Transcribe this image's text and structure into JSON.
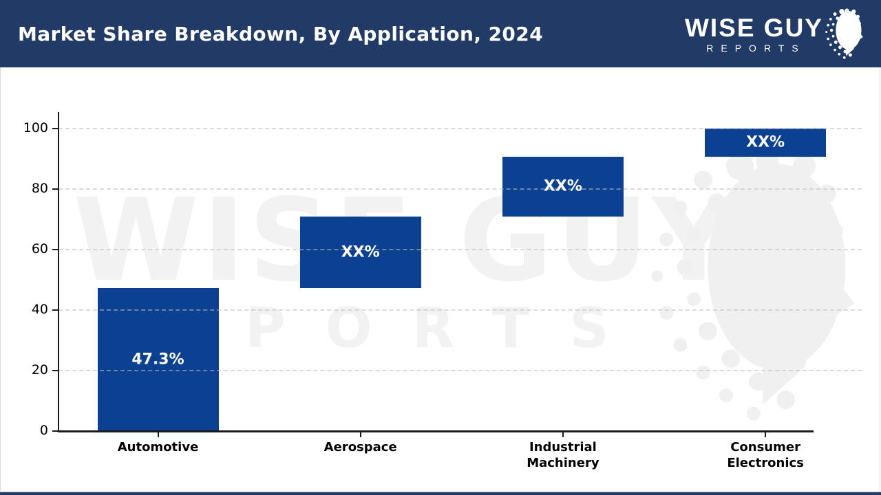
{
  "header": {
    "title": "Market Share Breakdown, By Application, 2024",
    "bg_color": "#213a66",
    "logo": {
      "line1": "WISE GUY",
      "line2": "REPORTS"
    }
  },
  "watermark": {
    "line1": "WISE GUY",
    "line2": "PORTS"
  },
  "chart_data": {
    "type": "bar",
    "subtype": "waterfall",
    "title": "Market Share Breakdown, By Application, 2024",
    "xlabel": "",
    "ylabel": "",
    "ylim": [
      0,
      100
    ],
    "yticks": [
      0,
      20,
      40,
      60,
      80,
      100
    ],
    "grid": "horizontal-dashed",
    "legend": "none",
    "bar_color": "#0c4191",
    "categories": [
      "Automotive",
      "Aerospace",
      "Industrial Machinery",
      "Consumer Electronics"
    ],
    "segments": [
      {
        "category": "Automotive",
        "start": 0,
        "end": 47.3,
        "label": "47.3%"
      },
      {
        "category": "Aerospace",
        "start": 47.3,
        "end": 71.0,
        "label": "XX%"
      },
      {
        "category": "Industrial Machinery",
        "start": 71.0,
        "end": 90.7,
        "label": "XX%"
      },
      {
        "category": "Consumer Electronics",
        "start": 90.7,
        "end": 100.0,
        "label": "XX%"
      }
    ]
  }
}
